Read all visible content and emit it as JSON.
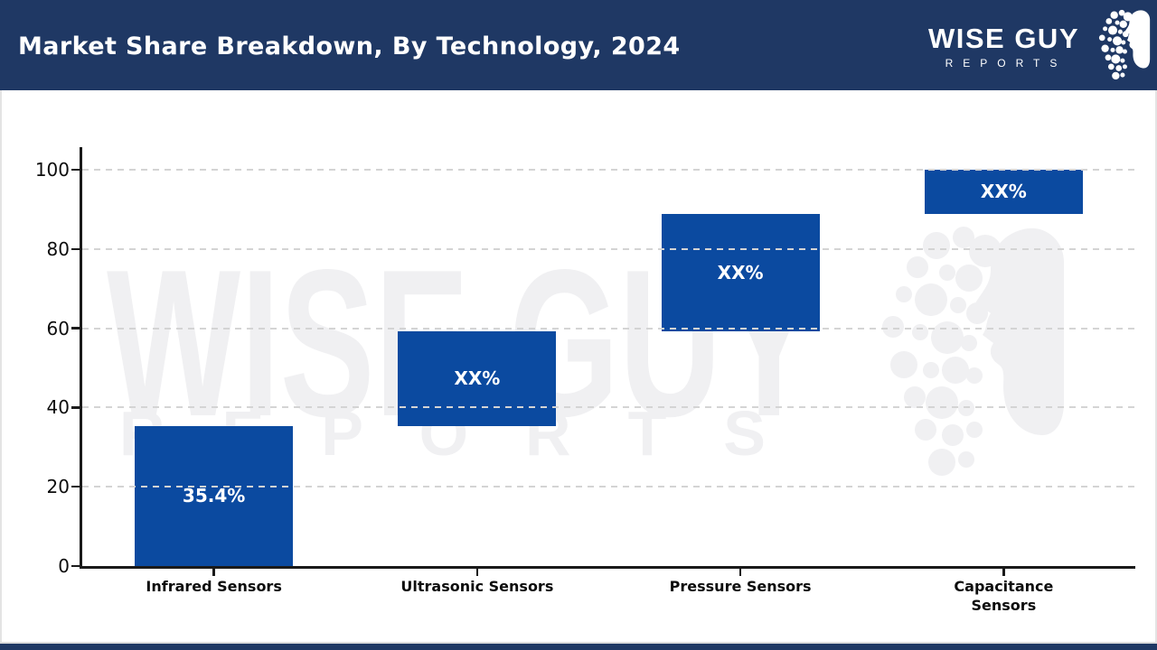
{
  "header": {
    "title": "Market Share Breakdown, By Technology, 2024",
    "logo": {
      "line1": "WISE GUY",
      "line2": "REPORTS"
    }
  },
  "watermark": {
    "line1": "WISE GUY",
    "line2": "R E P O R T S"
  },
  "colors": {
    "header_bg": "#1f3864",
    "footer_bg": "#1f3864",
    "bar": "#0b4aa0",
    "grid": "#d4d4d4",
    "axis": "#1a1a1a",
    "bar_label": "#ffffff",
    "watermark": "#f0f0f2"
  },
  "chart_data": {
    "type": "bar",
    "subtype": "waterfall-floating-segments",
    "title": "Market Share Breakdown, By Technology, 2024",
    "xlabel": "",
    "ylabel": "",
    "categories": [
      "Infrared Sensors",
      "Ultrasonic Sensors",
      "Pressure Sensors",
      "Capacitance\nSensors"
    ],
    "segments": [
      {
        "category": "Infrared Sensors",
        "start": 0,
        "end": 35.4,
        "label": "35.4%"
      },
      {
        "category": "Ultrasonic Sensors",
        "start": 35.4,
        "end": 59.2,
        "label": "XX%"
      },
      {
        "category": "Pressure Sensors",
        "start": 59.2,
        "end": 88.9,
        "label": "XX%"
      },
      {
        "category": "Capacitance Sensors",
        "start": 88.9,
        "end": 100,
        "label": "XX%"
      }
    ],
    "yticks": [
      0,
      20,
      40,
      60,
      80,
      100
    ],
    "ylim": [
      0,
      105.7
    ],
    "grid": "horizontal-dashed",
    "legend": "none"
  }
}
